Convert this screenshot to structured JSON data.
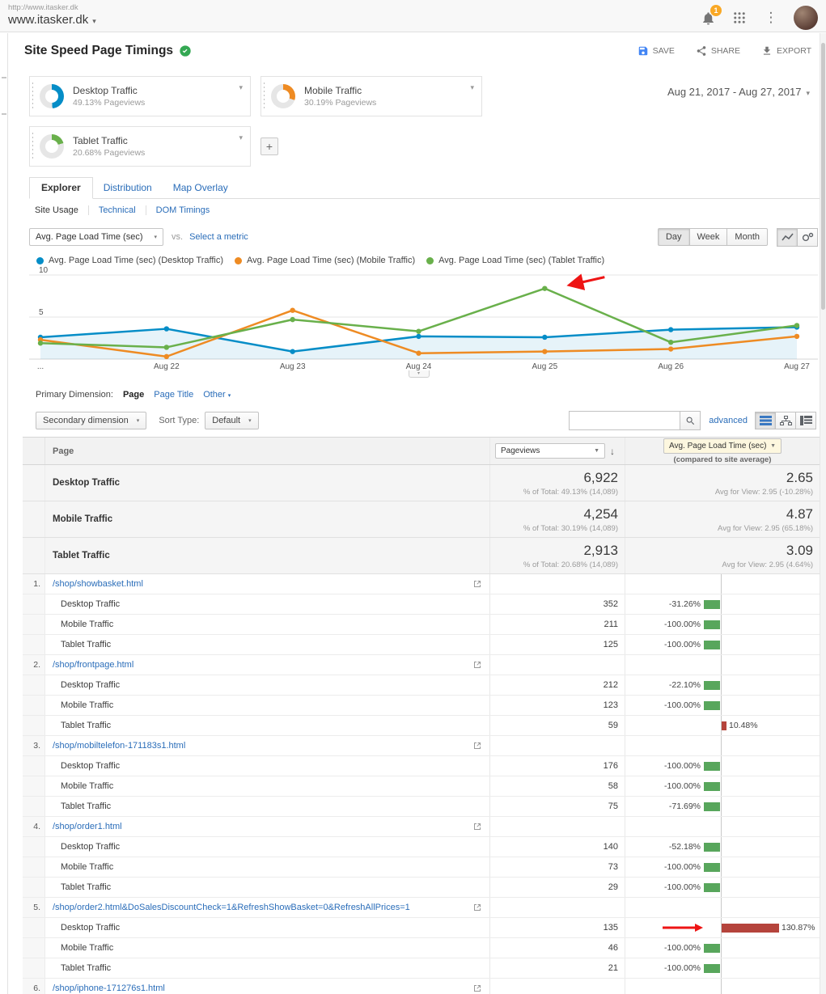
{
  "colors": {
    "link": "#2a6db9",
    "desktop": "#058dc7",
    "mobile": "#ee8b23",
    "tablet": "#69b04b",
    "bar_green": "#58a65c",
    "bar_red": "#b5443c",
    "arrow_red": "#ee1414",
    "badge": "#f9a825"
  },
  "icons": {
    "caret_down": "▾",
    "dropdown": "▼",
    "sort_desc": "↓",
    "more": "⋮",
    "add": "+"
  },
  "topbar": {
    "url": "http://www.itasker.dk",
    "account": "www.itasker.dk",
    "notification_count": "1"
  },
  "report": {
    "title": "Site Speed Page Timings",
    "save": "SAVE",
    "share": "SHARE",
    "export": "EXPORT",
    "date_range": "Aug 21, 2017 - Aug 27, 2017"
  },
  "segments": [
    {
      "name": "Desktop Traffic",
      "detail": "49.13% Pageviews",
      "pct": 49.13,
      "color": "#058dc7"
    },
    {
      "name": "Mobile Traffic",
      "detail": "30.19% Pageviews",
      "pct": 30.19,
      "color": "#ee8b23"
    },
    {
      "name": "Tablet Traffic",
      "detail": "20.68% Pageviews",
      "pct": 20.68,
      "color": "#69b04b"
    }
  ],
  "tabs": {
    "explorer": "Explorer",
    "distribution": "Distribution",
    "map_overlay": "Map Overlay"
  },
  "subtabs": {
    "site_usage": "Site Usage",
    "technical": "Technical",
    "dom_timings": "DOM Timings"
  },
  "metric_bar": {
    "metric": "Avg. Page Load Time (sec)",
    "vs": "vs.",
    "select_metric": "Select a metric",
    "day": "Day",
    "week": "Week",
    "month": "Month"
  },
  "chart_data": {
    "type": "line",
    "x": [
      "...",
      "Aug 22",
      "Aug 23",
      "Aug 24",
      "Aug 25",
      "Aug 26",
      "Aug 27"
    ],
    "ylim": [
      0,
      10
    ],
    "yticks": [
      5,
      10
    ],
    "series": [
      {
        "name": "Avg. Page Load Time (sec) (Desktop Traffic)",
        "color": "#058dc7",
        "area": true,
        "values": [
          2.6,
          3.6,
          0.9,
          2.7,
          2.6,
          3.5,
          3.8
        ]
      },
      {
        "name": "Avg. Page Load Time (sec) (Mobile Traffic)",
        "color": "#ee8b23",
        "area": false,
        "values": [
          2.3,
          0.3,
          5.8,
          0.7,
          0.9,
          1.2,
          2.7
        ]
      },
      {
        "name": "Avg. Page Load Time (sec) (Tablet Traffic)",
        "color": "#69b04b",
        "area": false,
        "values": [
          1.9,
          1.4,
          4.7,
          3.3,
          8.4,
          2.0,
          4.0
        ]
      }
    ],
    "annotations": [
      {
        "type": "arrow",
        "color": "#ee1414",
        "target_series": "Tablet Traffic",
        "target_x": "Aug 25"
      }
    ]
  },
  "dimension_bar": {
    "label": "Primary Dimension:",
    "primary": "Page",
    "links": [
      "Page Title",
      "Other"
    ]
  },
  "toolbar": {
    "secondary_dimension": "Secondary dimension",
    "sort_type_label": "Sort Type:",
    "sort_type_value": "Default",
    "search_value": "",
    "advanced": "advanced"
  },
  "table": {
    "page_col": "Page",
    "views_col": "Pageviews",
    "metric_col": "Avg. Page Load Time (sec)",
    "metric_col_sub": "(compared to site average)",
    "summary": [
      {
        "label": "Desktop Traffic",
        "views": "6,922",
        "views_sub": "% of Total: 49.13% (14,089)",
        "value": "2.65",
        "value_sub": "Avg for View: 2.95 (-10.28%)"
      },
      {
        "label": "Mobile Traffic",
        "views": "4,254",
        "views_sub": "% of Total: 30.19% (14,089)",
        "value": "4.87",
        "value_sub": "Avg for View: 2.95 (65.18%)"
      },
      {
        "label": "Tablet Traffic",
        "views": "2,913",
        "views_sub": "% of Total: 20.68% (14,089)",
        "value": "3.09",
        "value_sub": "Avg for View: 2.95 (4.64%)"
      }
    ],
    "groups": [
      {
        "index": "1.",
        "page": "/shop/showbasket.html",
        "rows": [
          {
            "label": "Desktop Traffic",
            "views": "352",
            "delta": "-31.26%"
          },
          {
            "label": "Mobile Traffic",
            "views": "211",
            "delta": "-100.00%"
          },
          {
            "label": "Tablet Traffic",
            "views": "125",
            "delta": "-100.00%"
          }
        ]
      },
      {
        "index": "2.",
        "page": "/shop/frontpage.html",
        "rows": [
          {
            "label": "Desktop Traffic",
            "views": "212",
            "delta": "-22.10%"
          },
          {
            "label": "Mobile Traffic",
            "views": "123",
            "delta": "-100.00%"
          },
          {
            "label": "Tablet Traffic",
            "views": "59",
            "delta": "10.48%"
          }
        ]
      },
      {
        "index": "3.",
        "page": "/shop/mobiltelefon-171183s1.html",
        "rows": [
          {
            "label": "Desktop Traffic",
            "views": "176",
            "delta": "-100.00%"
          },
          {
            "label": "Mobile Traffic",
            "views": "58",
            "delta": "-100.00%"
          },
          {
            "label": "Tablet Traffic",
            "views": "75",
            "delta": "-71.69%"
          }
        ]
      },
      {
        "index": "4.",
        "page": "/shop/order1.html",
        "rows": [
          {
            "label": "Desktop Traffic",
            "views": "140",
            "delta": "-52.18%"
          },
          {
            "label": "Mobile Traffic",
            "views": "73",
            "delta": "-100.00%"
          },
          {
            "label": "Tablet Traffic",
            "views": "29",
            "delta": "-100.00%"
          }
        ]
      },
      {
        "index": "5.",
        "page": "/shop/order2.html&DoSalesDiscountCheck=1&RefreshShowBasket=0&RefreshAllPrices=1",
        "rows": [
          {
            "label": "Desktop Traffic",
            "views": "135",
            "delta": "130.87%",
            "arrow": true
          },
          {
            "label": "Mobile Traffic",
            "views": "46",
            "delta": "-100.00%"
          },
          {
            "label": "Tablet Traffic",
            "views": "21",
            "delta": "-100.00%"
          }
        ]
      },
      {
        "index": "6.",
        "page": "/shop/iphone-171276s1.html",
        "rows": []
      }
    ]
  }
}
